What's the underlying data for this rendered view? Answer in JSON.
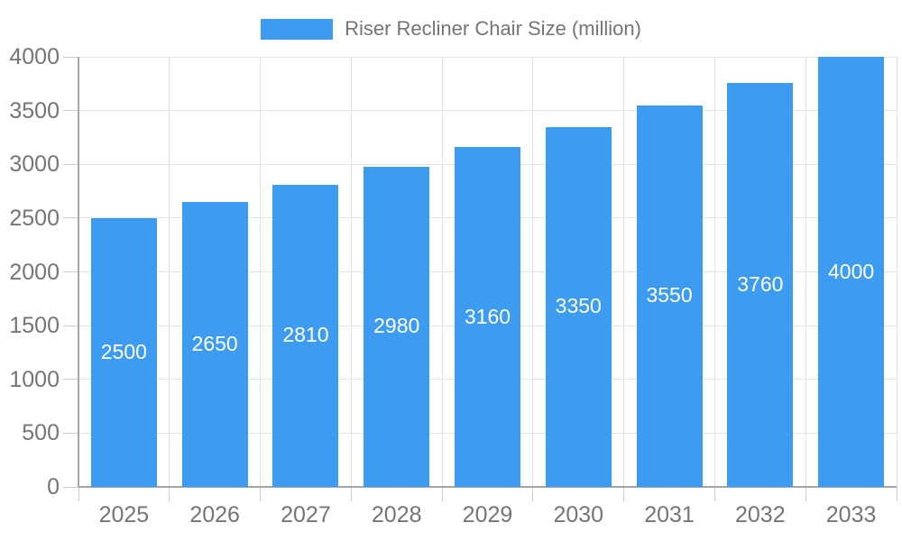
{
  "chart_data": {
    "type": "bar",
    "title": "Riser Recliner Chair Size (million)",
    "categories": [
      "2025",
      "2026",
      "2027",
      "2028",
      "2029",
      "2030",
      "2031",
      "2032",
      "2033"
    ],
    "values": [
      2500,
      2650,
      2810,
      2980,
      3160,
      3350,
      3550,
      3760,
      4000
    ],
    "bar_value_labels": [
      "2500",
      "2650",
      "2810",
      "2980",
      "3160",
      "3350",
      "3550",
      "3760",
      "4000"
    ],
    "xlabel": "",
    "ylabel": "",
    "ylim": [
      0,
      4000
    ],
    "yticks": [
      0,
      500,
      1000,
      1500,
      2000,
      2500,
      3000,
      3500,
      4000
    ],
    "ytick_labels": [
      "0",
      "500",
      "1000",
      "1500",
      "2000",
      "2500",
      "3000",
      "3500",
      "4000"
    ],
    "grid": true,
    "legend_position": "top",
    "colors": {
      "bar": "#3D9BF0",
      "bar_label": "#FFFFFF",
      "axis_text": "#757575",
      "axis_line": "#A6A6A6",
      "gridline": "#E3E3E3",
      "tick": "#CDCDCD",
      "background": "#FFFFFF"
    }
  }
}
